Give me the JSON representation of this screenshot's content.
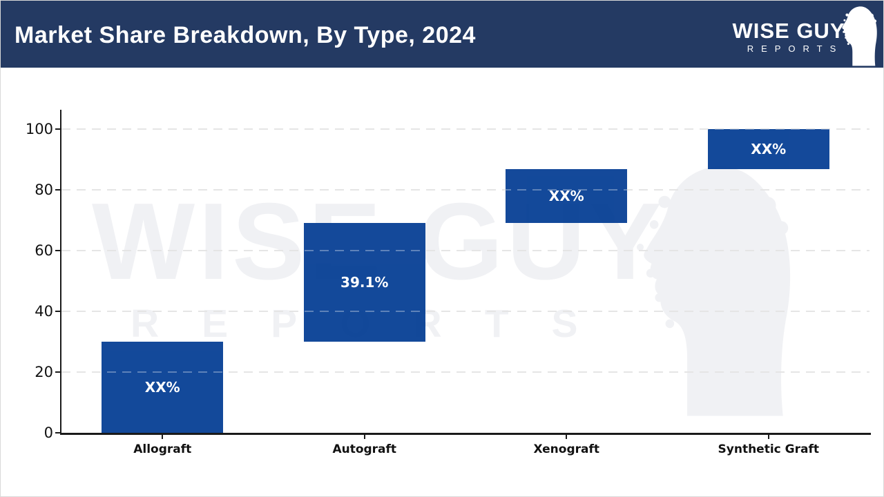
{
  "header": {
    "title": "Market Share Breakdown, By Type, 2024",
    "background_color": "#243a63",
    "logo": {
      "line1": "WISE GUY",
      "line2": "REPORTS"
    }
  },
  "watermark": {
    "line1": "WISE GUY",
    "line2": "REPORTS"
  },
  "chart_data": {
    "type": "bar",
    "subtype": "waterfall-stacked-breakdown",
    "title": "Market Share Breakdown, By Type, 2024",
    "categories": [
      "Allograft",
      "Autograft",
      "Xenograft",
      "Synthetic Graft"
    ],
    "segments": [
      {
        "category": "Allograft",
        "start": 0,
        "end": 30,
        "label": "XX%"
      },
      {
        "category": "Autograft",
        "start": 30,
        "end": 69.1,
        "label": "39.1%"
      },
      {
        "category": "Xenograft",
        "start": 69.1,
        "end": 86.9,
        "label": "XX%"
      },
      {
        "category": "Synthetic Graft",
        "start": 86.9,
        "end": 100,
        "label": "XX%"
      }
    ],
    "xlabel": "",
    "ylabel": "",
    "ylim": [
      0,
      100
    ],
    "yticks": [
      0,
      20,
      40,
      60,
      80,
      100
    ],
    "grid": "horizontal-dashed",
    "legend": "none",
    "bar_color": "#0a4296",
    "bar_label_color": "#ffffff",
    "axis_color": "#1a1a1a",
    "gridline_color": "#d9d9d9"
  }
}
